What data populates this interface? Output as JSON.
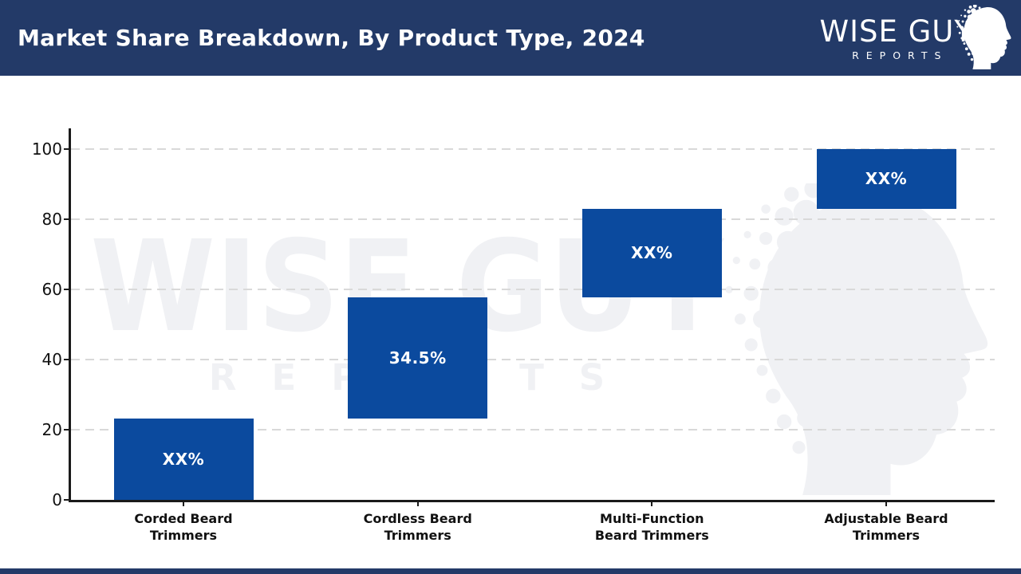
{
  "header": {
    "title": "Market Share Breakdown, By Product Type, 2024",
    "logo": {
      "name": "WISE GUY",
      "sub": "REPORTS"
    }
  },
  "watermark": {
    "name": "WISE GUY",
    "sub": "REPORTS"
  },
  "chart_data": {
    "type": "bar",
    "variant": "floating-waterfall",
    "title": "Market Share Breakdown, By Product Type, 2024",
    "categories": [
      "Corded Beard\nTrimmers",
      "Cordless Beard\nTrimmers",
      "Multi-Function\nBeard Trimmers",
      "Adjustable Beard\nTrimmers"
    ],
    "segments": [
      {
        "category": "Corded Beard Trimmers",
        "start": 0,
        "end": 23.2,
        "label": "XX%"
      },
      {
        "category": "Cordless Beard Trimmers",
        "start": 23.2,
        "end": 57.7,
        "label": "34.5%",
        "value": 34.5
      },
      {
        "category": "Multi-Function Beard Trimmers",
        "start": 57.7,
        "end": 83,
        "label": "XX%"
      },
      {
        "category": "Adjustable Beard Trimmers",
        "start": 83,
        "end": 100,
        "label": "XX%"
      }
    ],
    "yticks": [
      0,
      20,
      40,
      60,
      80,
      100
    ],
    "ylim": [
      0,
      106
    ],
    "xlabel": "",
    "ylabel": "",
    "legend": "none",
    "grid": "horizontal-dashed",
    "bar_color": "#0b4a9e"
  },
  "colors": {
    "header_bg": "#233a68",
    "footer_bg": "#233a68",
    "bar": "#0b4a9e",
    "gridline": "#d9d9d9",
    "axis": "#1a1a1a",
    "watermark": "#f0f1f4",
    "bar_label": "#ffffff",
    "text": "#111111"
  }
}
